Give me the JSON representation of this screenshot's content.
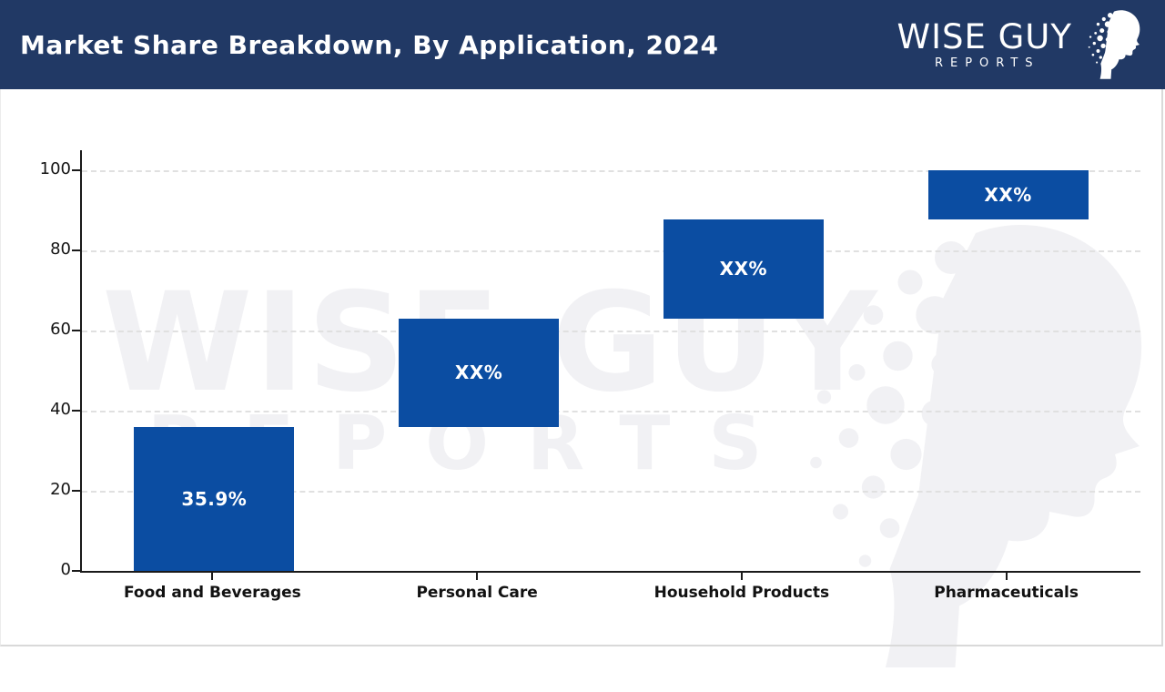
{
  "header": {
    "title": "Market Share Breakdown, By Application, 2024",
    "logo": {
      "line1": "WISE GUY",
      "line2": "REPORTS"
    }
  },
  "watermark": {
    "line1": "WISE GUY",
    "line2": "REPORTS"
  },
  "colors": {
    "header_bg": "#213965",
    "bar": "#0b4da2",
    "bar_label": "#ffffff",
    "grid": "#e0e0e0",
    "axis": "#1a1a1a",
    "watermark": "#f1f1f4"
  },
  "chart_data": {
    "type": "bar",
    "subtype": "floating-waterfall-stacked-share",
    "title": "Market Share Breakdown, By Application, 2024",
    "categories": [
      "Food and Beverages",
      "Personal Care",
      "Household Products",
      "Pharmaceuticals"
    ],
    "bars": [
      {
        "category": "Food and Beverages",
        "start": 0,
        "end": 35.9,
        "value": 35.9,
        "label": "35.9%"
      },
      {
        "category": "Personal Care",
        "start": 35.9,
        "end": 63.0,
        "value": 27.1,
        "label": "XX%"
      },
      {
        "category": "Household Products",
        "start": 63.0,
        "end": 87.7,
        "value": 24.7,
        "label": "XX%"
      },
      {
        "category": "Pharmaceuticals",
        "start": 87.7,
        "end": 100,
        "value": 12.3,
        "label": "XX%"
      }
    ],
    "xlabel": "",
    "ylabel": "",
    "ylim": [
      0,
      100
    ],
    "yticks": [
      0,
      20,
      40,
      60,
      80,
      100
    ],
    "grid": "horizontal-dashed",
    "legend": "none"
  }
}
